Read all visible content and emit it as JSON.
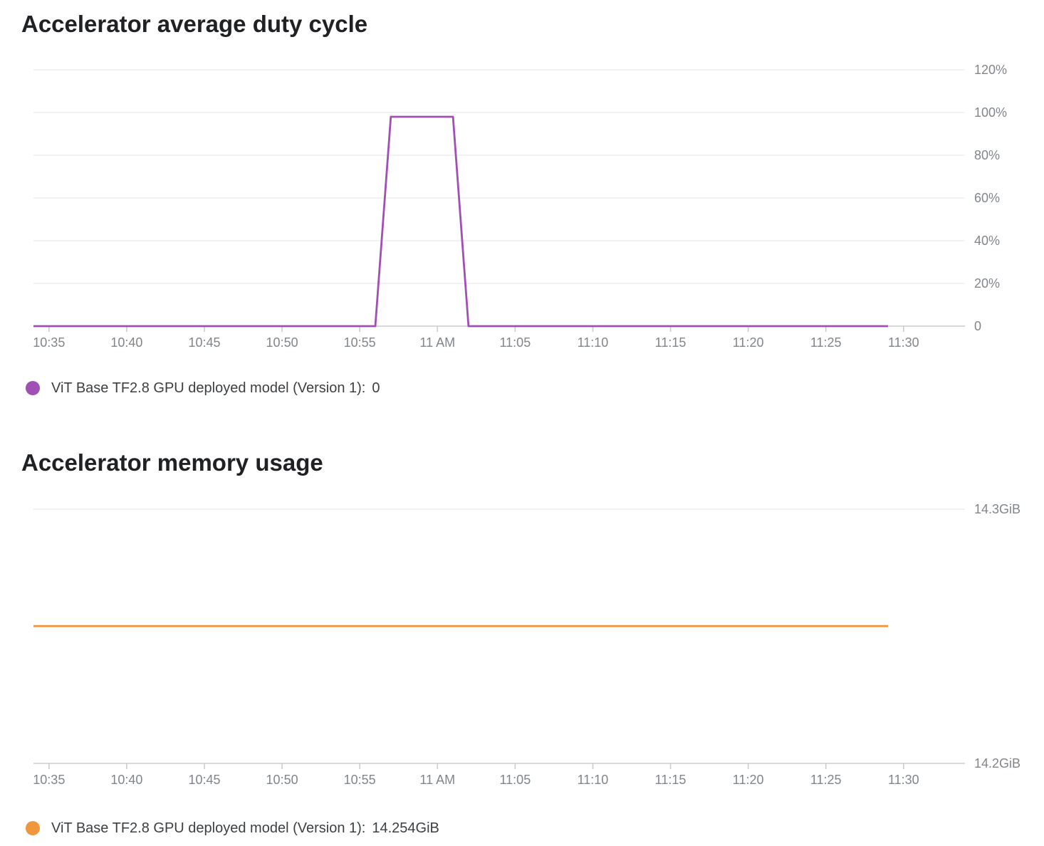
{
  "chart_data": [
    {
      "type": "line",
      "title": "Accelerator average duty cycle",
      "grid": true,
      "legend_position": "bottom-left",
      "ylim": [
        0,
        120
      ],
      "y_unit": "percent",
      "y_tick_labels": [
        "120%",
        "100%",
        "80%",
        "60%",
        "40%",
        "20%",
        "0"
      ],
      "y_tick_values": [
        120,
        100,
        80,
        60,
        40,
        20,
        0
      ],
      "x_tick_labels": [
        "10:35",
        "10:40",
        "10:45",
        "10:50",
        "10:55",
        "11 AM",
        "11:05",
        "11:10",
        "11:15",
        "11:20",
        "11:25",
        "11:30"
      ],
      "x": [
        "10:34",
        "10:35",
        "10:36",
        "10:37",
        "10:38",
        "10:39",
        "10:40",
        "10:41",
        "10:42",
        "10:43",
        "10:44",
        "10:45",
        "10:46",
        "10:47",
        "10:48",
        "10:49",
        "10:50",
        "10:51",
        "10:52",
        "10:53",
        "10:54",
        "10:55",
        "10:56",
        "10:57",
        "10:58",
        "10:59",
        "11:00",
        "11:01",
        "11:02",
        "11:03",
        "11:04",
        "11:05",
        "11:06",
        "11:07",
        "11:08",
        "11:09",
        "11:10",
        "11:11",
        "11:12",
        "11:13",
        "11:14",
        "11:15",
        "11:16",
        "11:17",
        "11:18",
        "11:19",
        "11:20",
        "11:21",
        "11:22",
        "11:23",
        "11:24",
        "11:25",
        "11:26",
        "11:27",
        "11:28",
        "11:29"
      ],
      "series": [
        {
          "name": "ViT Base TF2.8 GPU deployed model (Version 1)",
          "color": "#a04fb5",
          "values": [
            0,
            0,
            0,
            0,
            0,
            0,
            0,
            0,
            0,
            0,
            0,
            0,
            0,
            0,
            0,
            0,
            0,
            0,
            0,
            0,
            0,
            0,
            0,
            98,
            98,
            98,
            98,
            98,
            0,
            0,
            0,
            0,
            0,
            0,
            0,
            0,
            0,
            0,
            0,
            0,
            0,
            0,
            0,
            0,
            0,
            0,
            0,
            0,
            0,
            0,
            0,
            0,
            0,
            0,
            0,
            0
          ]
        }
      ],
      "legend": {
        "label": "ViT Base TF2.8 GPU deployed model (Version 1):",
        "value": "0"
      }
    },
    {
      "type": "line",
      "title": "Accelerator memory usage",
      "grid": true,
      "legend_position": "bottom-left",
      "ylim": [
        14.2,
        14.3
      ],
      "y_unit": "GiB",
      "y_tick_labels": [
        "14.3GiB",
        "14.2GiB"
      ],
      "y_tick_values": [
        14.3,
        14.2
      ],
      "x_tick_labels": [
        "10:35",
        "10:40",
        "10:45",
        "10:50",
        "10:55",
        "11 AM",
        "11:05",
        "11:10",
        "11:15",
        "11:20",
        "11:25",
        "11:30"
      ],
      "x": [
        "10:34",
        "10:35",
        "10:36",
        "10:37",
        "10:38",
        "10:39",
        "10:40",
        "10:41",
        "10:42",
        "10:43",
        "10:44",
        "10:45",
        "10:46",
        "10:47",
        "10:48",
        "10:49",
        "10:50",
        "10:51",
        "10:52",
        "10:53",
        "10:54",
        "10:55",
        "10:56",
        "10:57",
        "10:58",
        "10:59",
        "11:00",
        "11:01",
        "11:02",
        "11:03",
        "11:04",
        "11:05",
        "11:06",
        "11:07",
        "11:08",
        "11:09",
        "11:10",
        "11:11",
        "11:12",
        "11:13",
        "11:14",
        "11:15",
        "11:16",
        "11:17",
        "11:18",
        "11:19",
        "11:20",
        "11:21",
        "11:22",
        "11:23",
        "11:24",
        "11:25",
        "11:26",
        "11:27",
        "11:28",
        "11:29"
      ],
      "series": [
        {
          "name": "ViT Base TF2.8 GPU deployed model (Version 1)",
          "color": "#f0963c",
          "values": [
            14.254,
            14.254,
            14.254,
            14.254,
            14.254,
            14.254,
            14.254,
            14.254,
            14.254,
            14.254,
            14.254,
            14.254,
            14.254,
            14.254,
            14.254,
            14.254,
            14.254,
            14.254,
            14.254,
            14.254,
            14.254,
            14.254,
            14.254,
            14.254,
            14.254,
            14.254,
            14.254,
            14.254,
            14.254,
            14.254,
            14.254,
            14.254,
            14.254,
            14.254,
            14.254,
            14.254,
            14.254,
            14.254,
            14.254,
            14.254,
            14.254,
            14.254,
            14.254,
            14.254,
            14.254,
            14.254,
            14.254,
            14.254,
            14.254,
            14.254,
            14.254,
            14.254,
            14.254,
            14.254,
            14.254,
            14.254
          ]
        }
      ],
      "legend": {
        "label": "ViT Base TF2.8 GPU deployed model (Version 1):",
        "value": "14.254GiB"
      }
    }
  ]
}
